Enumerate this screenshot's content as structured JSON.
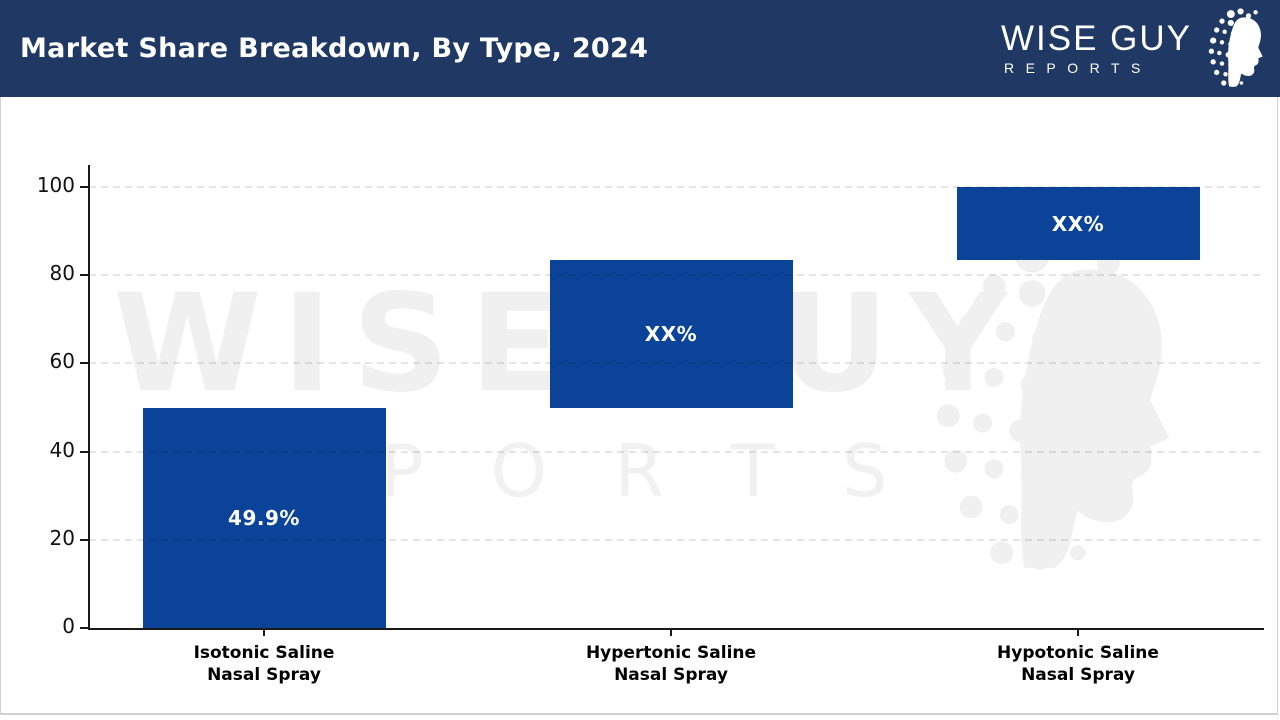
{
  "header": {
    "title": "Market Share Breakdown, By Type, 2024",
    "logo": {
      "line1": "WISE GUY",
      "line2": "REPORTS"
    }
  },
  "watermark": {
    "line1": "WISE GUY",
    "line2": "R E P O R T S"
  },
  "chart_data": {
    "type": "bar",
    "subtype": "stacked-waterfall",
    "title": "Market Share Breakdown, By Type, 2024",
    "categories": [
      {
        "line1": "Isotonic Saline",
        "line2": "Nasal Spray"
      },
      {
        "line1": "Hypertonic Saline",
        "line2": "Nasal Spray"
      },
      {
        "line1": "Hypotonic Saline",
        "line2": "Nasal Spray"
      }
    ],
    "segments": [
      {
        "start": 0,
        "end": 49.9,
        "label": "49.9%"
      },
      {
        "start": 49.9,
        "end": 83.4,
        "label": "XX%"
      },
      {
        "start": 83.4,
        "end": 100,
        "label": "XX%"
      }
    ],
    "xlabel": "",
    "ylabel": "",
    "ylim": [
      0,
      100
    ],
    "yticks": [
      0,
      20,
      40,
      60,
      80,
      100
    ],
    "grid": "horizontal-dashed",
    "legend": "none",
    "colors": {
      "bar": "#0b4398",
      "bar_label": "#ffffff",
      "header_bg": "#1f3864",
      "axis": "#1a1a1a",
      "grid": "#d9d9d9",
      "watermark": "#f0f0f0",
      "tick_label": "#111111",
      "category_label": "#000000"
    }
  }
}
